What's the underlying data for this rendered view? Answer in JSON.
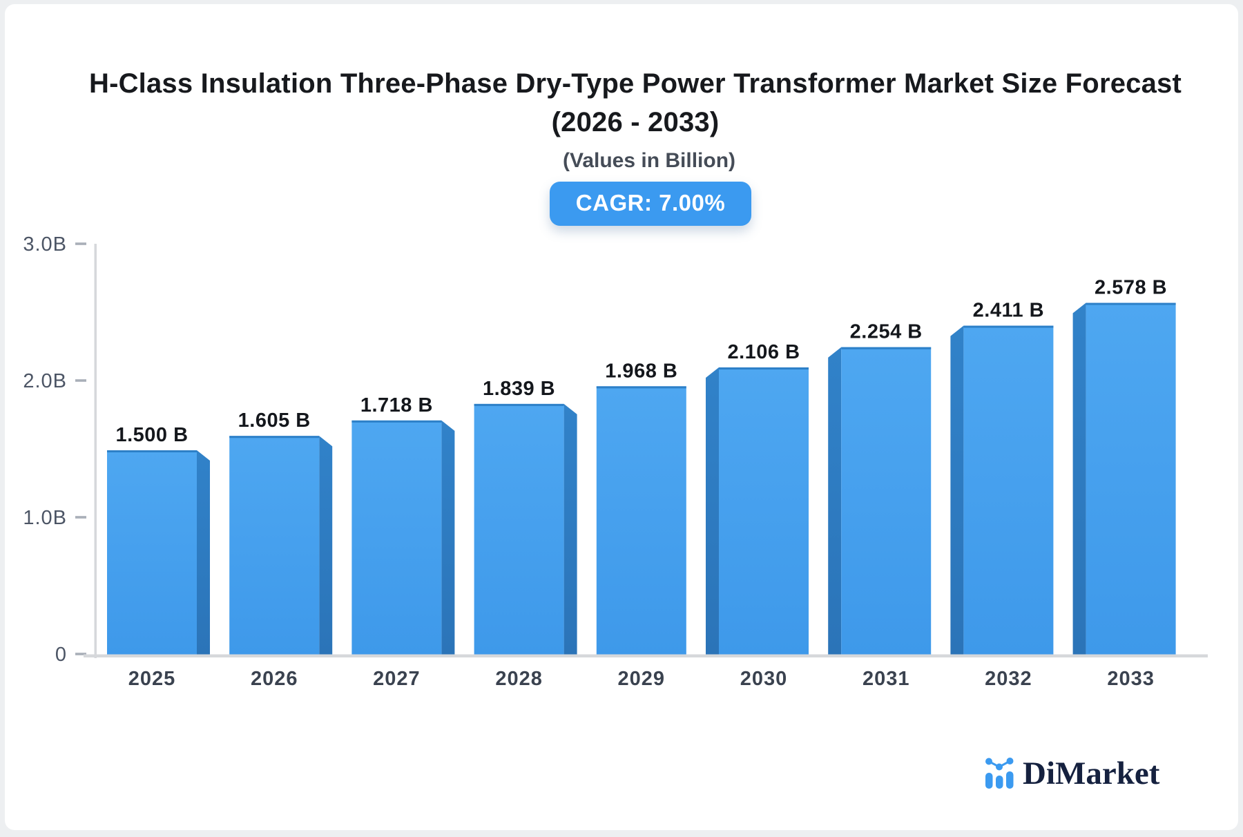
{
  "header": {
    "title_line1": "H-Class Insulation Three-Phase Dry-Type Power Transformer Market Size Forecast",
    "title_line2": "(2026 - 2033)",
    "subtitle": "(Values in Billion)",
    "cagr_badge": "CAGR: 7.00%",
    "badge_color": "#3b9af0"
  },
  "chart_data": {
    "type": "bar",
    "title": "H-Class Insulation Three-Phase Dry-Type Power Transformer Market Size Forecast (2026 - 2033)",
    "subtitle": "(Values in Billion)",
    "cagr_percent": 7.0,
    "categories": [
      "2025",
      "2026",
      "2027",
      "2028",
      "2029",
      "2030",
      "2031",
      "2032",
      "2033"
    ],
    "values": [
      1.5,
      1.605,
      1.718,
      1.839,
      1.968,
      2.106,
      2.254,
      2.411,
      2.578
    ],
    "value_labels": [
      "1.500 B",
      "1.605 B",
      "1.718 B",
      "1.839 B",
      "1.968 B",
      "2.106 B",
      "2.254 B",
      "2.411 B",
      "2.578 B"
    ],
    "xlabel": "",
    "ylabel": "",
    "ylim": [
      0,
      3
    ],
    "yticks": {
      "values": [
        0,
        1,
        2,
        3
      ],
      "labels": [
        "0",
        "1.0B",
        "2.0B",
        "3.0B"
      ]
    },
    "grid": false,
    "legend": false,
    "style_3d": true,
    "colors": {
      "bar_face_top": "#4ea7f1",
      "bar_face_bottom": "#3e99ea",
      "bar_top_edge": "#2d80c8",
      "bar_side_top": "#3182c9",
      "bar_side_bottom": "#2b74b8",
      "axis_line": "#d6d8db",
      "tick_dash": "#a9afb8",
      "tick_label": "#4c5565",
      "x_label": "#3a424f",
      "value_label": "#14171c"
    }
  },
  "footer": {
    "brand": "DiMarket",
    "logo_icon": "bar-chart-with-dots-icon",
    "brand_color": "#15213f",
    "icon_color": "#3b9af0"
  }
}
